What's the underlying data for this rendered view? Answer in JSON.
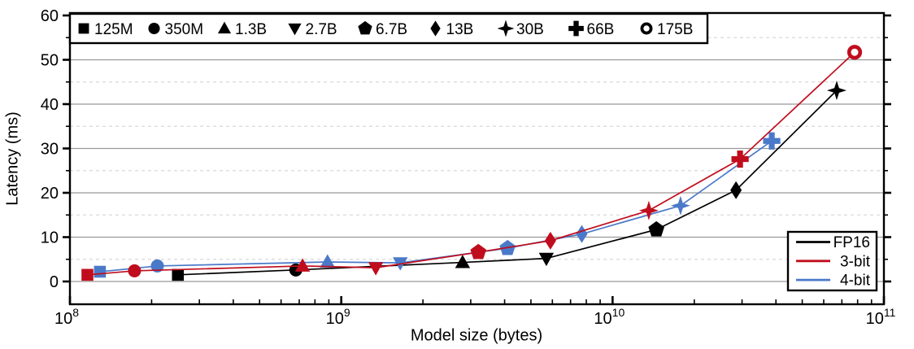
{
  "chart_data": {
    "type": "line",
    "title": "",
    "xlabel": "Model size (bytes)",
    "ylabel": "Latency (ms)",
    "x_scale": "log",
    "x_tick_exponents": [
      8,
      9,
      10,
      11
    ],
    "xlim": [
      100000000.0,
      100000000000.0
    ],
    "ylim": [
      -5,
      60.5
    ],
    "y_ticks": [
      0,
      10,
      20,
      30,
      40,
      50,
      60
    ],
    "y_minor_ticks": [
      5,
      15,
      25,
      35,
      45,
      55
    ],
    "grid": {
      "major": "solid",
      "minor": "dashed"
    },
    "colors": {
      "fp16": "#000000",
      "bit3": "#c00d1d",
      "bit4": "#4b79c9",
      "major_grid": "#999999",
      "minor_grid": "#d9d9d9",
      "axis": "#000000",
      "legend_bg": "#ffffff"
    },
    "marker_legend": {
      "position": "top-left",
      "items": [
        {
          "label": "125M",
          "marker": "square"
        },
        {
          "label": "350M",
          "marker": "circle"
        },
        {
          "label": "1.3B",
          "marker": "triangle-up"
        },
        {
          "label": "2.7B",
          "marker": "triangle-down"
        },
        {
          "label": "6.7B",
          "marker": "pentagon"
        },
        {
          "label": "13B",
          "marker": "diamond"
        },
        {
          "label": "30B",
          "marker": "star4"
        },
        {
          "label": "66B",
          "marker": "plus"
        },
        {
          "label": "175B",
          "marker": "circle-open"
        }
      ]
    },
    "series_legend": {
      "position": "bottom-right",
      "labels": [
        "FP16",
        "3-bit",
        "4-bit"
      ]
    },
    "series": [
      {
        "name": "FP16",
        "color": "#000000",
        "points": [
          {
            "model": "125M",
            "marker": "square",
            "size_bytes": 250000000.0,
            "latency_ms": 1.5
          },
          {
            "model": "350M",
            "marker": "circle",
            "size_bytes": 680000000.0,
            "latency_ms": 2.6
          },
          {
            "model": "1.3B",
            "marker": "triangle-up",
            "size_bytes": 2800000000.0,
            "latency_ms": 4.3
          },
          {
            "model": "2.7B",
            "marker": "triangle-down",
            "size_bytes": 5700000000.0,
            "latency_ms": 5.2
          },
          {
            "model": "6.7B",
            "marker": "pentagon",
            "size_bytes": 14500000000.0,
            "latency_ms": 11.7
          },
          {
            "model": "13B",
            "marker": "diamond",
            "size_bytes": 28500000000.0,
            "latency_ms": 20.6
          },
          {
            "model": "30B",
            "marker": "star4",
            "size_bytes": 67000000000.0,
            "latency_ms": 43.1
          }
        ]
      },
      {
        "name": "4-bit",
        "color": "#4b79c9",
        "points": [
          {
            "model": "125M",
            "marker": "square",
            "size_bytes": 129000000.0,
            "latency_ms": 2.2
          },
          {
            "model": "350M",
            "marker": "circle",
            "size_bytes": 210000000.0,
            "latency_ms": 3.5
          },
          {
            "model": "1.3B",
            "marker": "triangle-up",
            "size_bytes": 890000000.0,
            "latency_ms": 4.4
          },
          {
            "model": "2.7B",
            "marker": "triangle-down",
            "size_bytes": 1650000000.0,
            "latency_ms": 4.2
          },
          {
            "model": "6.7B",
            "marker": "pentagon",
            "size_bytes": 4100000000.0,
            "latency_ms": 7.5
          },
          {
            "model": "13B",
            "marker": "diamond",
            "size_bytes": 7700000000.0,
            "latency_ms": 10.7
          },
          {
            "model": "30B",
            "marker": "star4",
            "size_bytes": 17800000000.0,
            "latency_ms": 17.1
          },
          {
            "model": "66B",
            "marker": "plus",
            "size_bytes": 38600000000.0,
            "latency_ms": 31.7
          }
        ]
      },
      {
        "name": "3-bit",
        "color": "#c00d1d",
        "points": [
          {
            "model": "125M",
            "marker": "square",
            "size_bytes": 116000000.0,
            "latency_ms": 1.5
          },
          {
            "model": "350M",
            "marker": "circle",
            "size_bytes": 173000000.0,
            "latency_ms": 2.4
          },
          {
            "model": "1.3B",
            "marker": "triangle-up",
            "size_bytes": 720000000.0,
            "latency_ms": 3.5
          },
          {
            "model": "2.7B",
            "marker": "triangle-down",
            "size_bytes": 1340000000.0,
            "latency_ms": 3.1
          },
          {
            "model": "6.7B",
            "marker": "pentagon",
            "size_bytes": 3200000000.0,
            "latency_ms": 6.6
          },
          {
            "model": "13B",
            "marker": "diamond",
            "size_bytes": 5900000000.0,
            "latency_ms": 9.2
          },
          {
            "model": "30B",
            "marker": "star4",
            "size_bytes": 13600000000.0,
            "latency_ms": 16.0
          },
          {
            "model": "66B",
            "marker": "plus",
            "size_bytes": 29500000000.0,
            "latency_ms": 27.6
          },
          {
            "model": "175B",
            "marker": "circle-open",
            "size_bytes": 78000000000.0,
            "latency_ms": 51.7
          }
        ]
      }
    ]
  }
}
